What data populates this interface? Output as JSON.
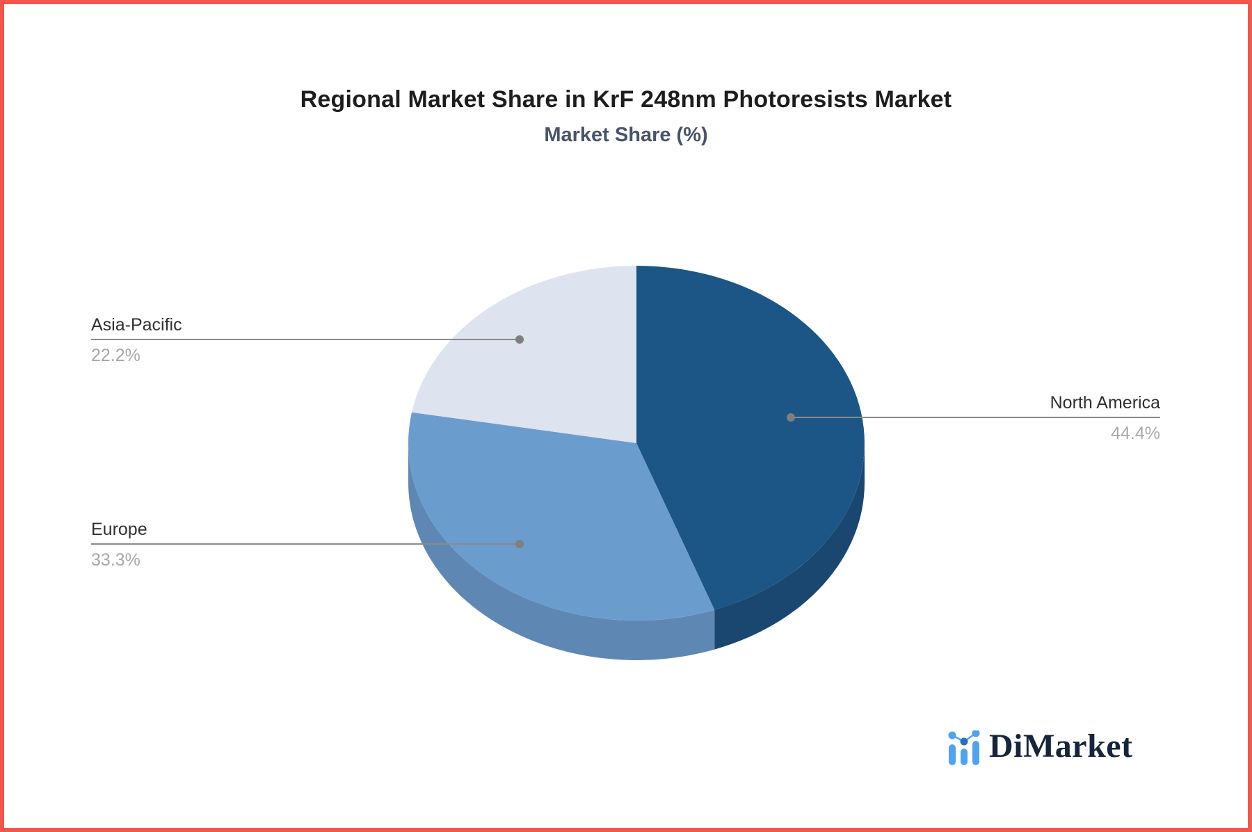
{
  "page": {
    "background": "#FFFFFF",
    "border_color": "#F2564D"
  },
  "header": {
    "title": "Regional Market Share in KrF 248nm Photoresists Market",
    "subtitle": "Market Share (%)"
  },
  "chart_data": {
    "type": "pie",
    "style": "3d",
    "title": "Regional Market Share in KrF 248nm Photoresists Market",
    "subtitle": "Market Share (%)",
    "unit": "%",
    "start_angle_deg": 0,
    "direction": "clockwise",
    "slices": [
      {
        "label": "North America",
        "value": 44.4,
        "display": "44.4%",
        "color": "#1B5687",
        "side_color": "#19476F"
      },
      {
        "label": "Europe",
        "value": 33.3,
        "display": "33.3%",
        "color": "#6A9CCE",
        "side_color": "#5E88B3"
      },
      {
        "label": "Asia-Pacific",
        "value": 22.2,
        "display": "22.2%",
        "color": "#DDE4EF",
        "side_color": "#C9D4E3"
      }
    ],
    "leader_line_color": "#8A8A8A",
    "leader_dot_color": "#7F7F7F",
    "label_color": "#303030",
    "value_color": "#A8A8A8"
  },
  "logo": {
    "text": "DiMarket",
    "icon": "bar-line-chart-icon",
    "icon_color": "#4EA3F2",
    "icon_accent_color": "#2C71C0",
    "text_color": "#16243D"
  }
}
